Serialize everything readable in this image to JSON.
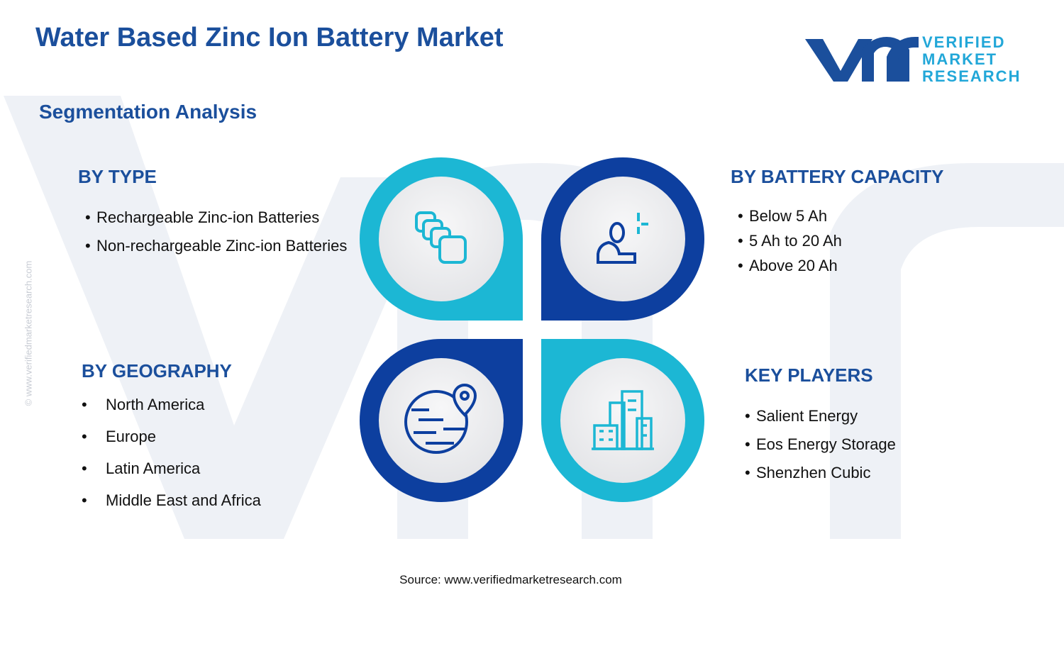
{
  "header": {
    "title": "Water Based Zinc Ion Battery Market",
    "subtitle": "Segmentation Analysis"
  },
  "logo": {
    "line1": "VERIFIED",
    "line2": "MARKET",
    "line3": "RESEARCH"
  },
  "watermark": "© www.verifiedmarketresearch.com",
  "segments": [
    {
      "heading": "BY TYPE",
      "items": [
        "Rechargeable Zinc-ion Batteries",
        "Non-rechargeable Zinc-ion Batteries"
      ]
    },
    {
      "heading": "BY BATTERY CAPACITY",
      "items": [
        "Below 5 Ah",
        "5 Ah to 20 Ah",
        "Above 20 Ah"
      ]
    },
    {
      "heading": "BY GEOGRAPHY",
      "items": [
        "North America",
        "Europe",
        "Latin America",
        "Middle East and Africa"
      ]
    },
    {
      "heading": "KEY PLAYERS",
      "items": [
        "Salient Energy",
        "Eos Energy Storage",
        "Shenzhen Cubic"
      ]
    }
  ],
  "source": "Source: www.verifiedmarketresearch.com"
}
